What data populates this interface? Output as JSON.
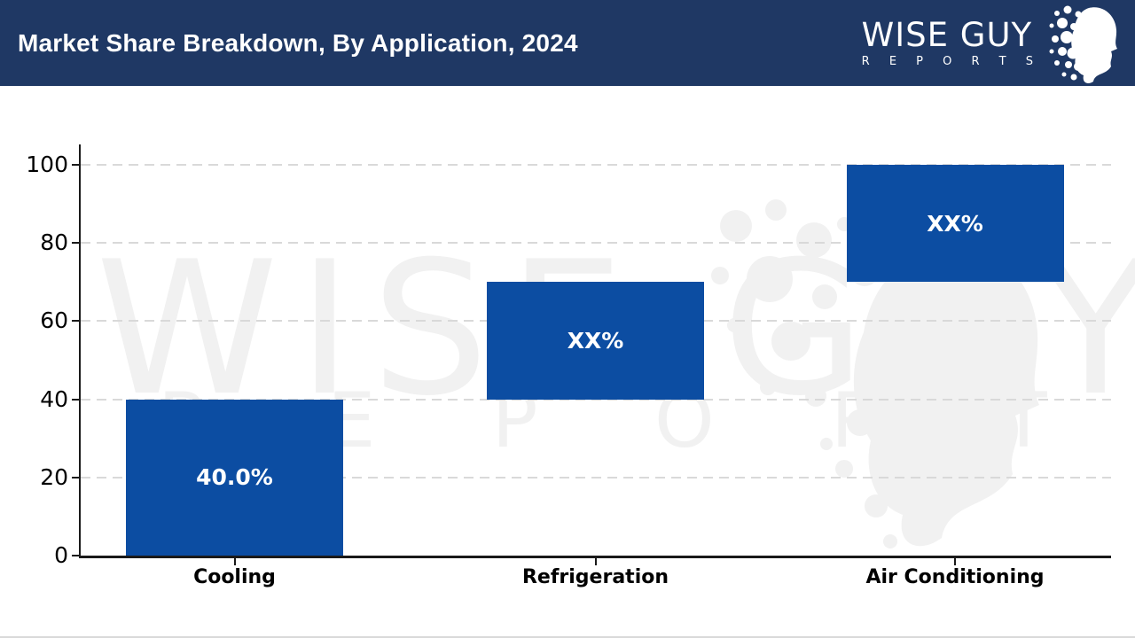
{
  "header": {
    "title": "Market Share Breakdown, By Application, 2024",
    "bg_color": "#1f3864",
    "logo": {
      "name": "WISE GUY",
      "sub": "R E P O R T S"
    }
  },
  "watermark": {
    "line1": "WISE GUY",
    "line2": "R E P O R T S"
  },
  "chart_data": {
    "type": "bar",
    "variant": "waterfall-breakdown",
    "title": "Market Share Breakdown, By Application, 2024",
    "categories": [
      "Cooling",
      "Refrigeration",
      "Air Conditioning"
    ],
    "bars": [
      {
        "category": "Cooling",
        "start": 0,
        "end": 40,
        "label": "40.0%"
      },
      {
        "category": "Refrigeration",
        "start": 40,
        "end": 70,
        "label": "XX%"
      },
      {
        "category": "Air Conditioning",
        "start": 70,
        "end": 100,
        "label": "XX%"
      }
    ],
    "yticks": [
      0,
      20,
      40,
      60,
      80,
      100
    ],
    "ylim": [
      0,
      105
    ],
    "xlabel": "",
    "ylabel": "",
    "grid": "horizontal-dashed",
    "legend": "none",
    "bar_color": "#0c4da2",
    "bar_label_color": "#ffffff",
    "gridline_color": "#d9d9d9",
    "axis_color": "#1a1a1a"
  }
}
